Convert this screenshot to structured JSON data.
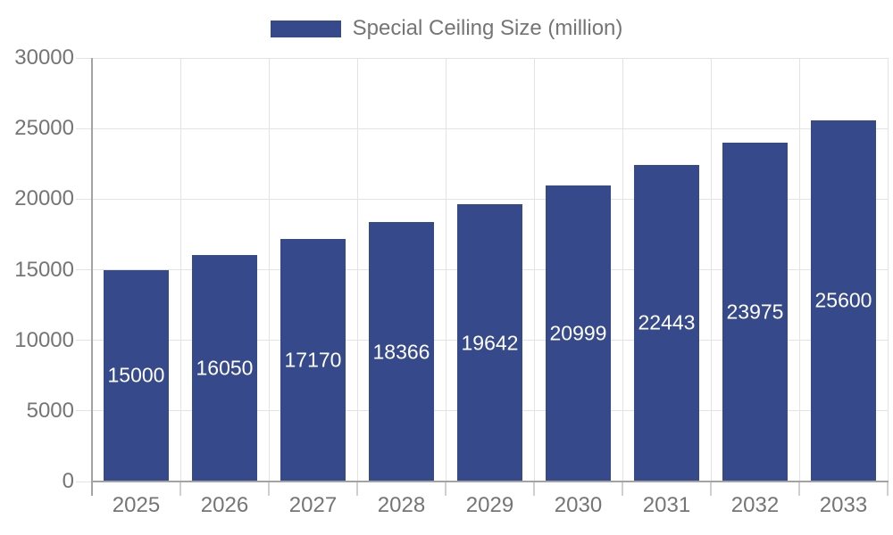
{
  "chart_data": {
    "type": "bar",
    "title": "",
    "legend_position": "top",
    "legend": [
      "Special Ceiling Size (million)"
    ],
    "categories": [
      "2025",
      "2026",
      "2027",
      "2028",
      "2029",
      "2030",
      "2031",
      "2032",
      "2033"
    ],
    "series": [
      {
        "name": "Special Ceiling Size (million)",
        "values": [
          15000,
          16050,
          17170,
          18366,
          19642,
          20999,
          22443,
          23975,
          25600
        ]
      }
    ],
    "value_labels_shown": true,
    "xlabel": "",
    "ylabel": "",
    "ylim": [
      0,
      30000
    ],
    "yticks": [
      0,
      5000,
      10000,
      15000,
      20000,
      25000,
      30000
    ],
    "grid": true,
    "colors": {
      "bar": "#36498a",
      "grid": "#e3e3e3",
      "axis": "#a3a3a3",
      "tick": "#cfcfcf",
      "text": "#757575",
      "value_label": "#ffffff",
      "background": "#ffffff"
    }
  }
}
